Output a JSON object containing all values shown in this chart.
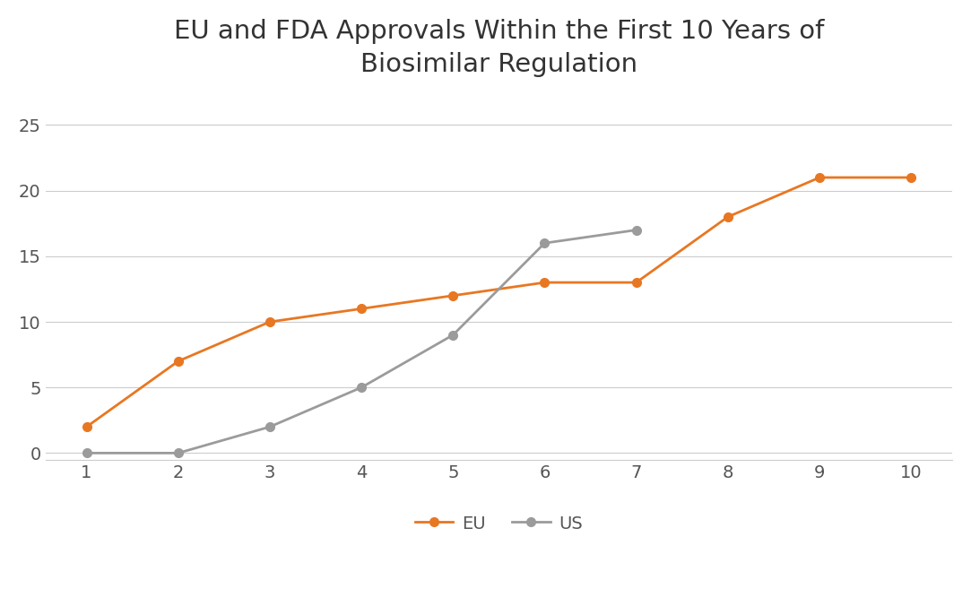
{
  "title_line1": "EU and FDA Approvals Within the First 10 Years of",
  "title_line2": "Biosimilar Regulation",
  "x": [
    1,
    2,
    3,
    4,
    5,
    6,
    7,
    8,
    9,
    10
  ],
  "eu_values": [
    2,
    7,
    10,
    11,
    12,
    13,
    13,
    18,
    21,
    21
  ],
  "us_values": [
    0,
    0,
    2,
    5,
    9,
    16,
    17,
    null,
    null,
    null
  ],
  "eu_color": "#E87722",
  "us_color": "#9B9B9B",
  "eu_label": "EU",
  "us_label": "US",
  "ylim": [
    -0.5,
    27
  ],
  "yticks": [
    0,
    5,
    10,
    15,
    20,
    25
  ],
  "xticks": [
    1,
    2,
    3,
    4,
    5,
    6,
    7,
    8,
    9,
    10
  ],
  "background_color": "#ffffff",
  "plot_area_color": "#ffffff",
  "border_color": "#cccccc",
  "grid_color": "#cccccc",
  "title_fontsize": 21,
  "tick_fontsize": 14,
  "legend_fontsize": 14,
  "line_width": 2.0,
  "marker_size": 7
}
